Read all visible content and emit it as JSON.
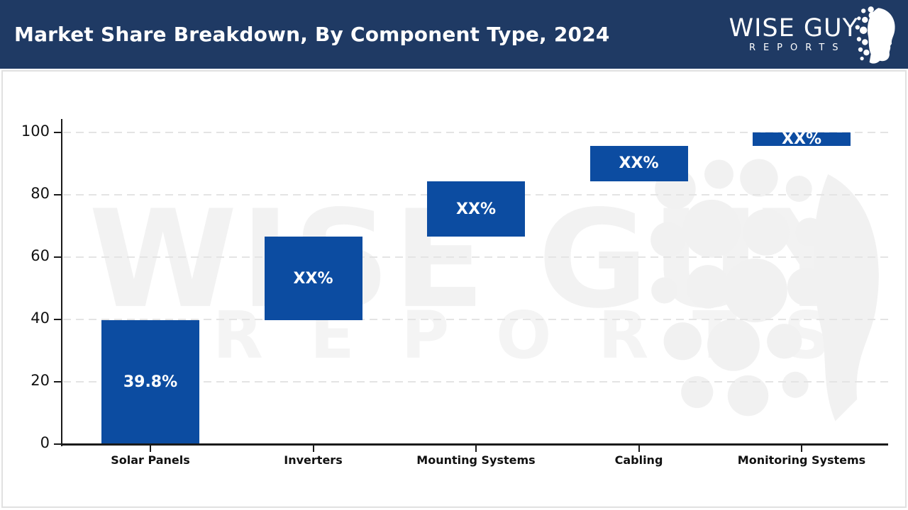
{
  "header": {
    "title": "Market Share Breakdown, By Component Type, 2024",
    "bg_color": "#1f3a64",
    "logo": {
      "line1": "WISE GUY",
      "line2": "REPORTS"
    }
  },
  "watermark": {
    "line1": "WISE GUY",
    "line2": "REPORTS"
  },
  "chart_data": {
    "type": "bar",
    "subtype": "waterfall",
    "title": "Market Share Breakdown, By Component Type, 2024",
    "categories": [
      "Solar Panels",
      "Inverters",
      "Mounting Systems",
      "Cabling",
      "Monitoring Systems"
    ],
    "segments": [
      {
        "category": "Solar Panels",
        "start": 0,
        "end": 39.8,
        "label": "39.8%"
      },
      {
        "category": "Inverters",
        "start": 39.8,
        "end": 66.5,
        "label": "XX%"
      },
      {
        "category": "Mounting Systems",
        "start": 66.5,
        "end": 84.3,
        "label": "XX%"
      },
      {
        "category": "Cabling",
        "start": 84.3,
        "end": 95.7,
        "label": "XX%"
      },
      {
        "category": "Monitoring Systems",
        "start": 95.7,
        "end": 100.0,
        "label": "XX%"
      }
    ],
    "yticks": [
      0,
      20,
      40,
      60,
      80,
      100
    ],
    "ylim": [
      0,
      104
    ],
    "xlabel": "",
    "ylabel": "",
    "grid": "horizontal dashed",
    "legend": "none",
    "bar_color": "#0c4ca1",
    "label_color": "#ffffff",
    "axis_color": "#1a1a1a"
  }
}
